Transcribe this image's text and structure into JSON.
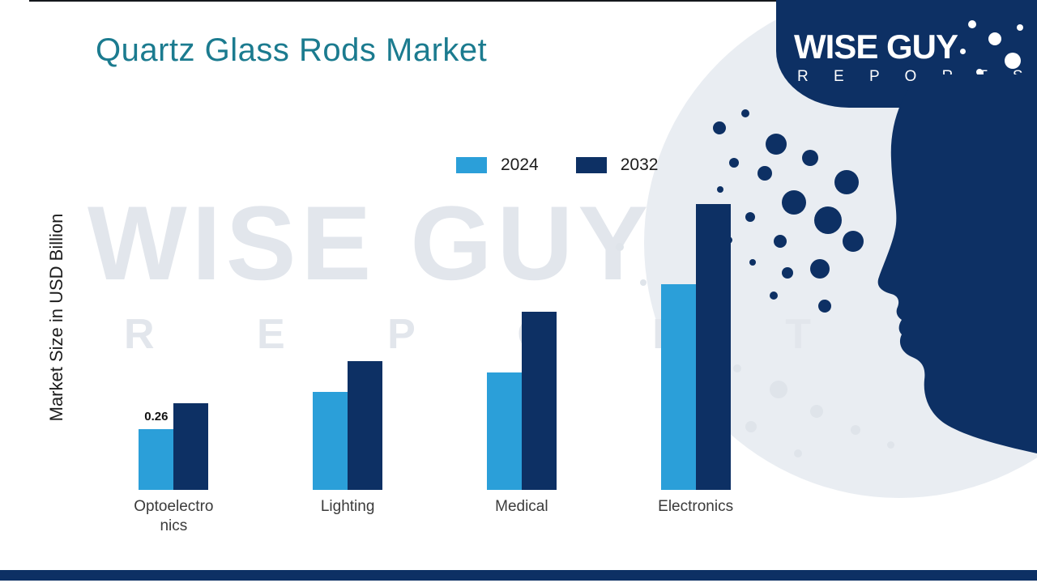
{
  "title": "Quartz Glass Rods Market",
  "ylabel": "Market Size in USD Billion",
  "watermark": {
    "line1": "WISE GUY",
    "line2": "R E P O R T S"
  },
  "logo": {
    "brand_line1": "WISE GUY",
    "brand_line2": "R E P O R T S"
  },
  "colors": {
    "title_teal": "#1B7B8F",
    "bar_2024": "#2B9FD9",
    "bar_2032": "#0D3064",
    "footer_navy": "#0D3064",
    "watermark_gray": "#E2E6EC"
  },
  "chart_data": {
    "type": "bar",
    "title": "Quartz Glass Rods Market",
    "ylabel": "Market Size in USD Billion",
    "categories": [
      "Optoelectronics",
      "Lighting",
      "Medical",
      "Electronics"
    ],
    "series": [
      {
        "name": "2024",
        "color": "#2B9FD9",
        "values": [
          0.26,
          0.42,
          0.5,
          0.88
        ]
      },
      {
        "name": "2032",
        "color": "#0D3064",
        "values": [
          0.37,
          0.55,
          0.76,
          1.22
        ]
      }
    ],
    "visible_value_labels": [
      {
        "category": "Optoelectronics",
        "series": "2024",
        "label": "0.26"
      }
    ],
    "ylim": [
      0,
      1.3
    ],
    "legend_position": "top-center",
    "grid": false,
    "axis_lines": false
  }
}
